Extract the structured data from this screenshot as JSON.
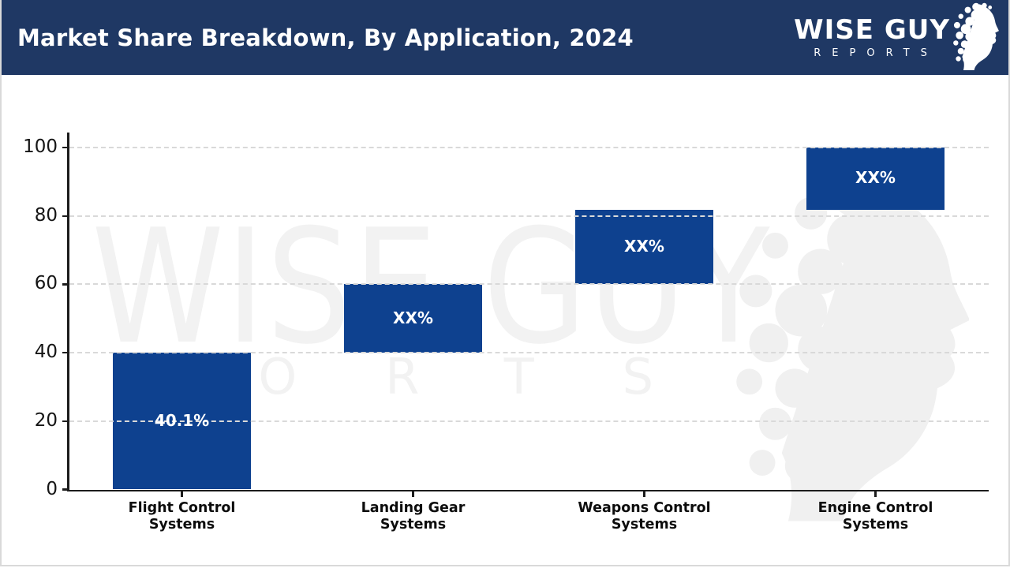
{
  "header": {
    "title": "Market Share Breakdown, By Application, 2024",
    "brand": {
      "name": "WISE GUY",
      "tagline": "REPORTS"
    }
  },
  "watermark": {
    "line1": "WISE GUY",
    "line2": "PORTS"
  },
  "colors": {
    "header_bg": "#1f3864",
    "bar": "#0e418f",
    "gridline": "#d9d9d9",
    "axis": "#1c1c1c",
    "bar_label": "#ffffff",
    "watermark": "#f2f2f2"
  },
  "chart_data": {
    "type": "bar",
    "subtype": "waterfall",
    "title": "Market Share Breakdown, By Application, 2024",
    "categories": [
      "Flight Control Systems",
      "Landing Gear Systems",
      "Weapons Control Systems",
      "Engine Control Systems"
    ],
    "segments": [
      {
        "category_lines": [
          "Flight Control",
          "Systems"
        ],
        "start": 0,
        "end": 40.1,
        "label": "40.1%"
      },
      {
        "category_lines": [
          "Landing Gear",
          "Systems"
        ],
        "start": 40.1,
        "end": 60.0,
        "label": "XX%"
      },
      {
        "category_lines": [
          "Weapons Control",
          "Systems"
        ],
        "start": 60.0,
        "end": 81.8,
        "label": "XX%"
      },
      {
        "category_lines": [
          "Engine Control",
          "Systems"
        ],
        "start": 81.8,
        "end": 100.0,
        "label": "XX%"
      }
    ],
    "xlabel": "",
    "ylabel": "",
    "ylim": [
      0,
      100
    ],
    "yticks": [
      0,
      20,
      40,
      60,
      80,
      100
    ],
    "grid": {
      "axis": "y",
      "style": "dashed",
      "drawn_above_bars": true
    },
    "legend": null
  }
}
